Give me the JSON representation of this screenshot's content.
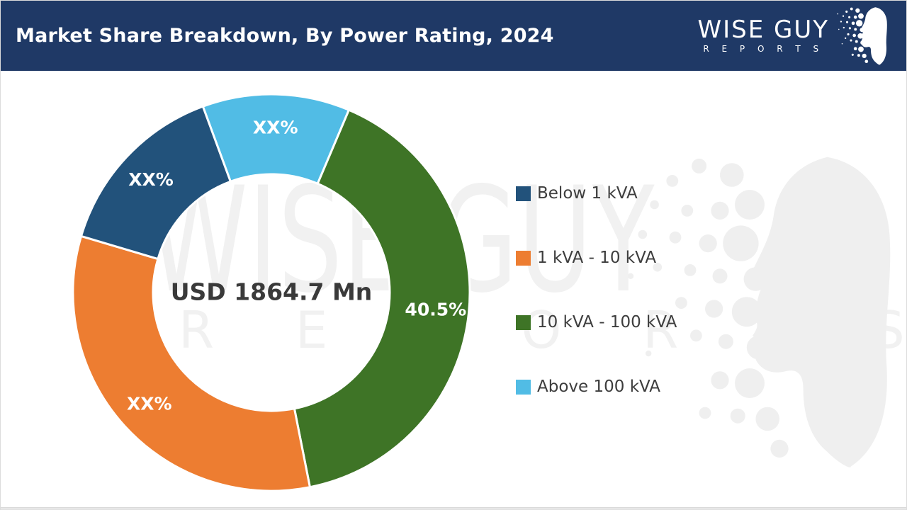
{
  "header": {
    "title": "Market Share Breakdown, By Power Rating, 2024",
    "logo": {
      "name": "WISE GUY",
      "sub": "R E P O R T S"
    }
  },
  "watermark": {
    "line1": "WISE GUY",
    "line2": "R E P O R T S"
  },
  "chart_data": {
    "type": "pie",
    "subtype": "donut",
    "title": "Market Share Breakdown, By Power Rating, 2024",
    "center_label": "USD 1864.7 Mn",
    "legend_position": "right",
    "start_angle_clockwise_from_top_deg": -20.2,
    "slices": [
      {
        "label": "Below 1 kVA",
        "display_label": "XX%",
        "value_pct": 14.8,
        "color": "#22527B"
      },
      {
        "label": "1 kVA - 10 kVA",
        "display_label": "XX%",
        "value_pct": 32.7,
        "color": "#ED7D31"
      },
      {
        "label": "10 kVA - 100 kVA",
        "display_label": "40.5%",
        "value_pct": 40.5,
        "color": "#3E7426"
      },
      {
        "label": "Above 100 kVA",
        "display_label": "XX%",
        "value_pct": 12.0,
        "color": "#51BCE5"
      }
    ],
    "clockwise_order_from_top": [
      3,
      2,
      1,
      0
    ]
  },
  "colors": {
    "header_bg": "#1F3966",
    "center_text": "#3A3A3A",
    "legend_text": "#3D3D3D",
    "watermark": "#F1F1F1",
    "slice_gap": "#FFFFFF"
  }
}
